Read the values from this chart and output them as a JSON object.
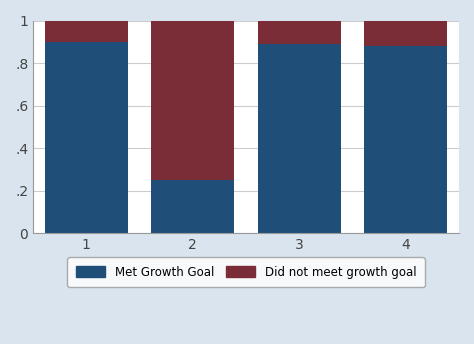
{
  "categories": [
    1,
    2,
    3,
    4
  ],
  "met_goal": [
    0.9,
    0.25,
    0.89,
    0.88
  ],
  "not_met_goal": [
    0.1,
    0.75,
    0.11,
    0.12
  ],
  "color_met": "#1F4E79",
  "color_not_met": "#7B2D37",
  "bar_width": 0.78,
  "ylim": [
    0,
    1.0
  ],
  "yticks": [
    0,
    0.2,
    0.4,
    0.6,
    0.8,
    1.0
  ],
  "ytick_labels": [
    "0",
    ".2",
    ".4",
    ".6",
    ".8",
    "1"
  ],
  "xlabel": "",
  "ylabel": "",
  "legend_met": "Met Growth Goal",
  "legend_not_met": "Did not meet growth goal",
  "background_color": "#D9E4EE",
  "plot_bg_color": "#FFFFFF",
  "grid_color": "#CCCCCC",
  "title": ""
}
